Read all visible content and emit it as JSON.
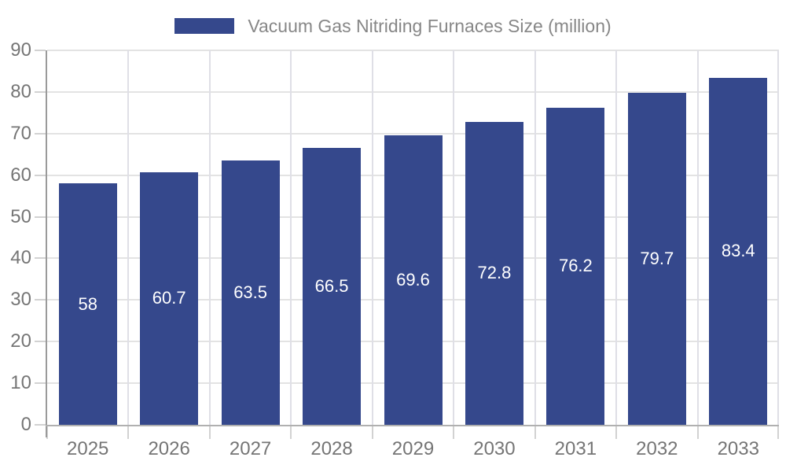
{
  "legend": {
    "label": "Vacuum Gas Nitriding Furnaces Size (million)"
  },
  "colors": {
    "bar": "#35488C",
    "axis_y": "#9a9a9a",
    "axis_x": "#b0b0b0",
    "grid_h": "#e3e3e3",
    "grid_v": "#dfdfe6",
    "tick": "#d2d2d2",
    "tick_label": "#757575",
    "legend_text": "#878787",
    "value_label": "#ffffff",
    "background": "#ffffff"
  },
  "chart_data": {
    "type": "bar",
    "title": "Vacuum Gas Nitriding Furnaces Size (million)",
    "categories": [
      "2025",
      "2026",
      "2027",
      "2028",
      "2029",
      "2030",
      "2031",
      "2032",
      "2033"
    ],
    "values": [
      58,
      60.7,
      63.5,
      66.5,
      69.6,
      72.8,
      76.2,
      79.7,
      83.4
    ],
    "value_labels": [
      "58",
      "60.7",
      "63.5",
      "66.5",
      "69.6",
      "72.8",
      "76.2",
      "79.7",
      "83.4"
    ],
    "xlabel": "",
    "ylabel": "",
    "ylim": [
      0,
      90
    ],
    "yticks": [
      0,
      10,
      20,
      30,
      40,
      50,
      60,
      70,
      80,
      90
    ],
    "grid": true,
    "legend_position": "top",
    "value_label_position": "inside-center"
  }
}
